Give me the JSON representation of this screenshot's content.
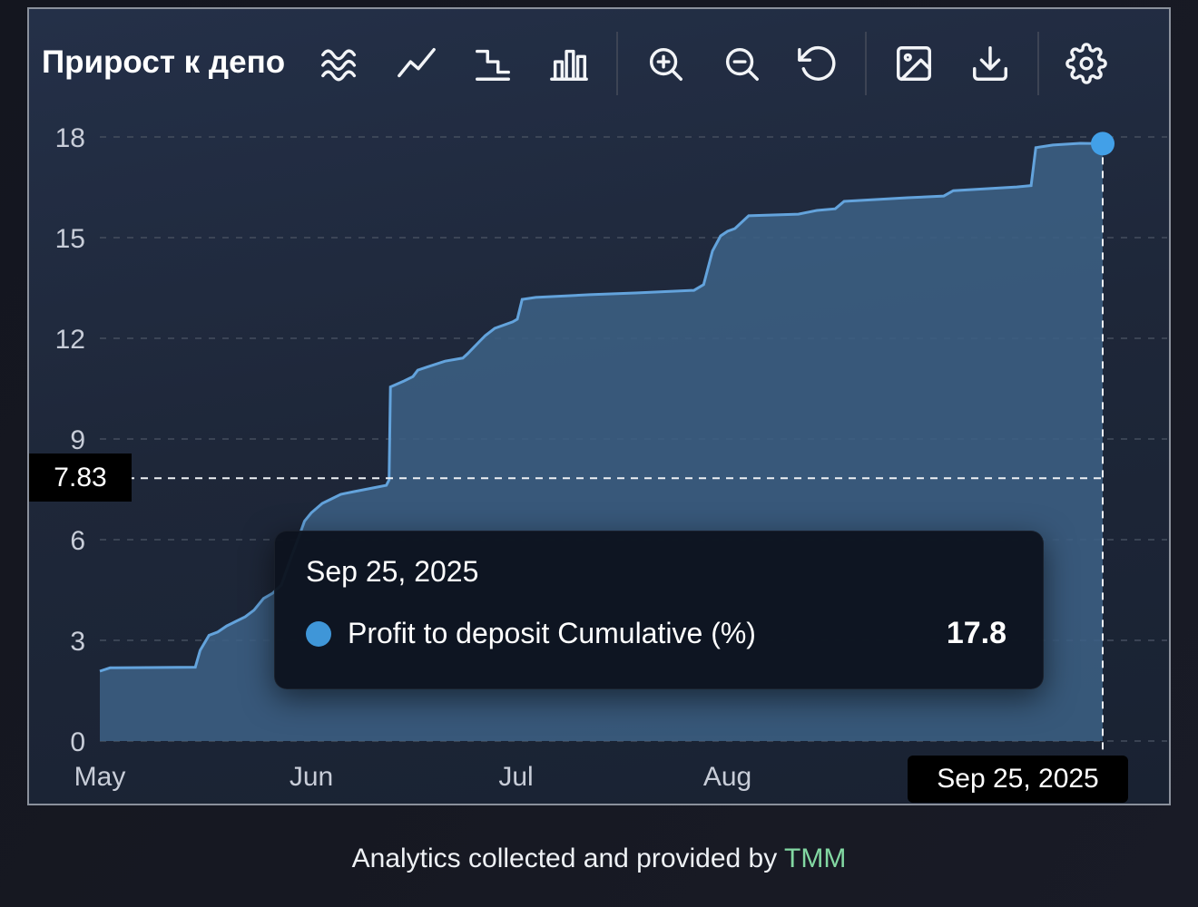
{
  "header": {
    "title": "Прирост к депо"
  },
  "toolbar": {
    "icons": [
      "area-chart",
      "line-chart",
      "step-chart",
      "column-chart",
      "zoom-in",
      "zoom-out",
      "reset-zoom",
      "export-image",
      "download",
      "settings"
    ]
  },
  "colors": {
    "line_blue": "#63a3dc",
    "area_fill": "#3d6286",
    "marker_blue": "#42a0e8",
    "tooltip_dot": "#3f96d8",
    "brand_green": "#82d8a2",
    "badge_bg": "#000000"
  },
  "chart_data": {
    "type": "area",
    "title": "Прирост к депо",
    "xlabel": "",
    "ylabel": "",
    "x_unit": "days since May 1, 2025",
    "xlim": [
      0,
      147
    ],
    "ylim": [
      0,
      18
    ],
    "grid": true,
    "yticks": [
      0,
      3,
      6,
      9,
      12,
      15,
      18
    ],
    "xticks": [
      {
        "d": 0,
        "label": "May"
      },
      {
        "d": 31,
        "label": "Jun"
      },
      {
        "d": 61,
        "label": "Jul"
      },
      {
        "d": 92,
        "label": "Aug"
      }
    ],
    "crosshair": {
      "x_day": 147,
      "x_label": "Sep 25, 2025",
      "y_value": 7.83,
      "y_label": "7.83"
    },
    "series": [
      {
        "name": "Profit to deposit Cumulative (%)",
        "color": "#63a3dc",
        "fill_color": "#3d6286",
        "fill_opacity": 0.85,
        "marker_color": "#42a0e8",
        "last_value": 17.8,
        "points": [
          [
            0,
            2.08
          ],
          [
            1.5,
            2.18
          ],
          [
            14,
            2.2
          ],
          [
            14.7,
            2.7
          ],
          [
            16,
            3.15
          ],
          [
            17.3,
            3.25
          ],
          [
            18.6,
            3.43
          ],
          [
            20,
            3.57
          ],
          [
            21.3,
            3.7
          ],
          [
            22.6,
            3.9
          ],
          [
            24,
            4.25
          ],
          [
            25.3,
            4.4
          ],
          [
            26.6,
            4.65
          ],
          [
            27.3,
            5.05
          ],
          [
            28,
            5.45
          ],
          [
            29.3,
            6.15
          ],
          [
            30,
            6.55
          ],
          [
            31,
            6.8
          ],
          [
            32.6,
            7.08
          ],
          [
            34,
            7.22
          ],
          [
            35.3,
            7.35
          ],
          [
            37.2,
            7.43
          ],
          [
            40,
            7.54
          ],
          [
            42,
            7.62
          ],
          [
            42.4,
            7.78
          ],
          [
            42.6,
            10.55
          ],
          [
            44.6,
            10.73
          ],
          [
            45.9,
            10.86
          ],
          [
            46.6,
            11.05
          ],
          [
            47.9,
            11.14
          ],
          [
            50.6,
            11.32
          ],
          [
            53.2,
            11.41
          ],
          [
            53.9,
            11.54
          ],
          [
            55.2,
            11.81
          ],
          [
            56.5,
            12.08
          ],
          [
            57.9,
            12.3
          ],
          [
            60.5,
            12.49
          ],
          [
            61.2,
            12.57
          ],
          [
            61.9,
            13.16
          ],
          [
            63.9,
            13.22
          ],
          [
            71.8,
            13.3
          ],
          [
            78.5,
            13.35
          ],
          [
            87.1,
            13.43
          ],
          [
            88.5,
            13.6
          ],
          [
            89.8,
            14.6
          ],
          [
            91,
            15.05
          ],
          [
            92,
            15.19
          ],
          [
            93.1,
            15.27
          ],
          [
            95.1,
            15.65
          ],
          [
            102.4,
            15.7
          ],
          [
            105.1,
            15.81
          ],
          [
            107.8,
            15.86
          ],
          [
            109.1,
            16.08
          ],
          [
            118.4,
            16.19
          ],
          [
            123.7,
            16.24
          ],
          [
            125.1,
            16.4
          ],
          [
            134.4,
            16.51
          ],
          [
            136.5,
            16.55
          ],
          [
            137.2,
            17.68
          ],
          [
            139.7,
            17.76
          ],
          [
            143.7,
            17.81
          ],
          [
            147,
            17.8
          ]
        ]
      }
    ],
    "legend_position": "tooltip"
  },
  "tooltip": {
    "date": "Sep 25, 2025",
    "series_label": "Profit to deposit Cumulative (%)",
    "value": "17.8",
    "dot_color": "#3f96d8"
  },
  "footer": {
    "text": "Analytics collected and provided by ",
    "brand": "TMM"
  }
}
